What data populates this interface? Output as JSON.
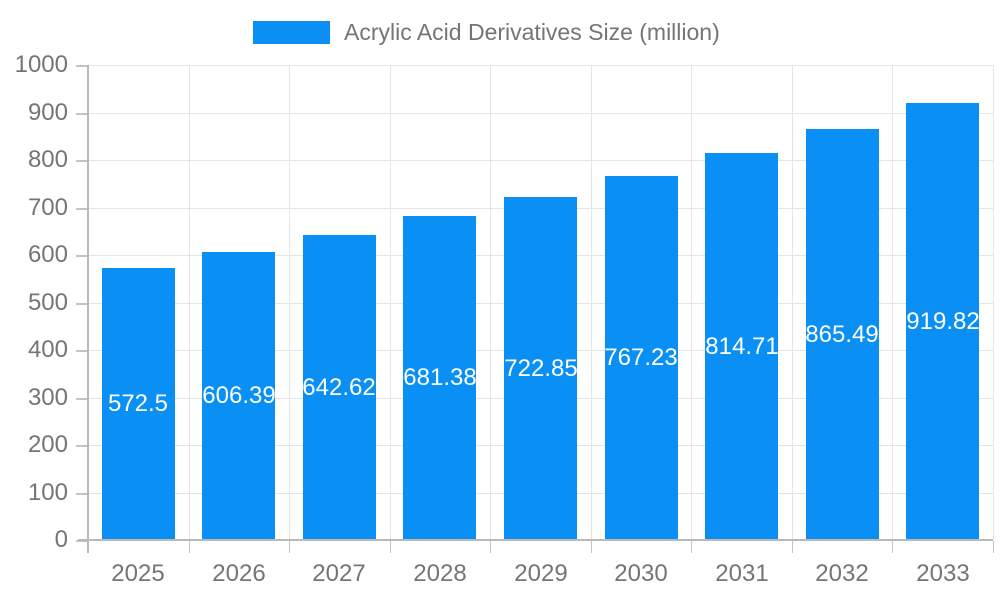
{
  "legend": {
    "label": "Acrylic Acid Derivatives Size (million)"
  },
  "chart_data": {
    "type": "bar",
    "title": "Acrylic Acid Derivatives Size (million)",
    "categories": [
      "2025",
      "2026",
      "2027",
      "2028",
      "2029",
      "2030",
      "2031",
      "2032",
      "2033"
    ],
    "values": [
      572.5,
      606.39,
      642.62,
      681.38,
      722.85,
      767.23,
      814.71,
      865.49,
      919.82
    ],
    "value_labels": [
      "572.5",
      "606.39",
      "642.62",
      "681.38",
      "722.85",
      "767.23",
      "814.71",
      "865.49",
      "919.82"
    ],
    "xlabel": "",
    "ylabel": "",
    "ylim": [
      0,
      1000
    ],
    "y_tick_step": 100,
    "y_tick_labels": [
      "0",
      "100",
      "200",
      "300",
      "400",
      "500",
      "600",
      "700",
      "800",
      "900",
      "1000"
    ],
    "grid": true,
    "legend_position": "top-center",
    "colors": {
      "bar": "#0A90F5",
      "value_label": "#FFFFFF",
      "axis_text": "#757575",
      "gridline": "#E5E5E5",
      "axis_line": "#B9B9B9",
      "background": "#FFFFFF"
    }
  }
}
